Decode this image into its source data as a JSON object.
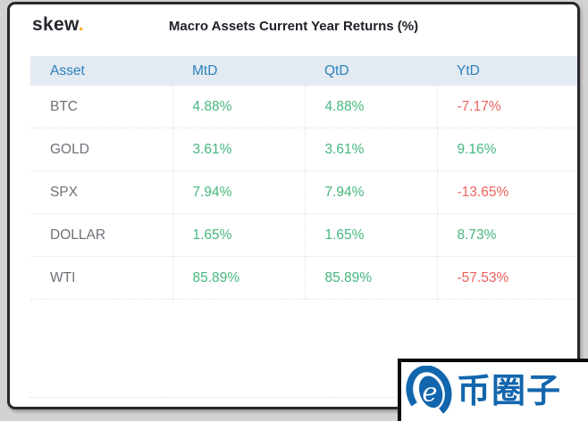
{
  "brand": {
    "name": "skew",
    "dot": "."
  },
  "header": {
    "title": "Macro Assets Current Year Returns (%)"
  },
  "table": {
    "columns": [
      "Asset",
      "MtD",
      "QtD",
      "YtD"
    ],
    "rows": [
      {
        "asset": "BTC",
        "values": [
          "4.88%",
          "4.88%",
          "-7.17%"
        ]
      },
      {
        "asset": "GOLD",
        "values": [
          "3.61%",
          "3.61%",
          "9.16%"
        ]
      },
      {
        "asset": "SPX",
        "values": [
          "7.94%",
          "7.94%",
          "-13.65%"
        ]
      },
      {
        "asset": "DOLLAR",
        "values": [
          "1.65%",
          "1.65%",
          "8.73%"
        ]
      },
      {
        "asset": "WTI",
        "values": [
          "85.89%",
          "85.89%",
          "-57.53%"
        ]
      }
    ]
  },
  "watermark": {
    "text": "币圈子"
  },
  "colors": {
    "positive": "#45b77d",
    "negative": "#f0605c",
    "header_text": "#2a82ba",
    "header_bg": "#e3eaf2",
    "accent": "#f6a821",
    "watermark_blue": "#1266ad",
    "card_border": "#26282d",
    "asset_text": "#6d7177",
    "title_text": "#20222a",
    "page_bg": "#d2d2d2"
  },
  "chart_data": {
    "type": "table",
    "title": "Macro Assets Current Year Returns (%)",
    "columns": [
      "Asset",
      "MtD",
      "QtD",
      "YtD"
    ],
    "rows": [
      [
        "BTC",
        4.88,
        4.88,
        -7.17
      ],
      [
        "GOLD",
        3.61,
        3.61,
        9.16
      ],
      [
        "SPX",
        7.94,
        7.94,
        -13.65
      ],
      [
        "DOLLAR",
        1.65,
        1.65,
        8.73
      ],
      [
        "WTI",
        85.89,
        85.89,
        -57.53
      ]
    ],
    "units": "%",
    "value_color_rule": "negative values red, positive values green"
  }
}
